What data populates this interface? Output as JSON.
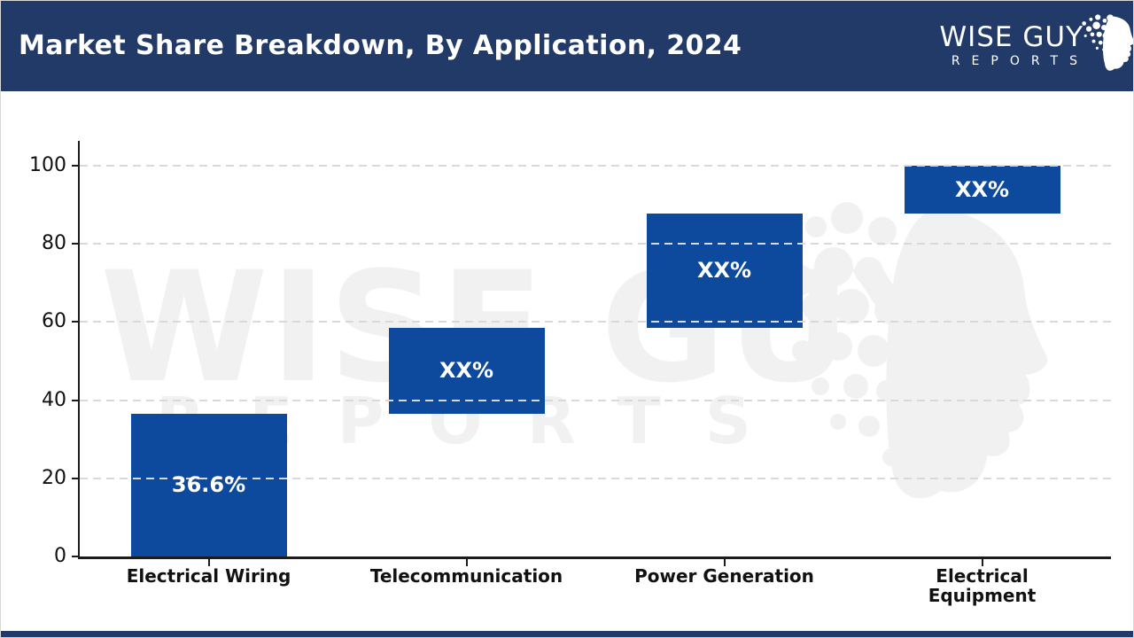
{
  "header": {
    "title": "Market Share Breakdown, By Application, 2024",
    "logo": {
      "wordmark": "WISE GUY",
      "subtext": "REPORTS"
    }
  },
  "watermark": {
    "line1": "WISE GUY",
    "line2": "REPORTS"
  },
  "colors": {
    "header_bg": "#223a67",
    "footer_bg": "#223a67",
    "bar": "#0d4a9d",
    "bar_label": "#ffffff",
    "gridline": "#d9d9d9",
    "axis": "#1c1c1c",
    "watermark": "#f1f1f2",
    "title_text": "#ffffff"
  },
  "chart_data": {
    "type": "bar",
    "subtype": "waterfall",
    "title": "Market Share Breakdown, By Application, 2024",
    "categories": [
      {
        "label": "Electrical Wiring",
        "lines": [
          "Electrical Wiring"
        ]
      },
      {
        "label": "Telecommunication",
        "lines": [
          "Telecommunication"
        ]
      },
      {
        "label": "Power Generation",
        "lines": [
          "Power Generation"
        ]
      },
      {
        "label": "Electrical Equipment",
        "lines": [
          "Electrical",
          "Equipment"
        ]
      }
    ],
    "segments": [
      {
        "category": "Electrical Wiring",
        "start": 0,
        "end": 36.6,
        "label": "36.6%"
      },
      {
        "category": "Telecommunication",
        "start": 36.6,
        "end": 58.5,
        "label": "XX%"
      },
      {
        "category": "Power Generation",
        "start": 58.5,
        "end": 87.8,
        "label": "XX%"
      },
      {
        "category": "Electrical Equipment",
        "start": 87.8,
        "end": 100,
        "label": "XX%"
      }
    ],
    "xlabel": "",
    "ylabel": "",
    "ylim": [
      0,
      100
    ],
    "yticks": [
      0,
      20,
      40,
      60,
      80,
      100
    ],
    "grid": "horizontal-dashed",
    "legend": "none"
  }
}
